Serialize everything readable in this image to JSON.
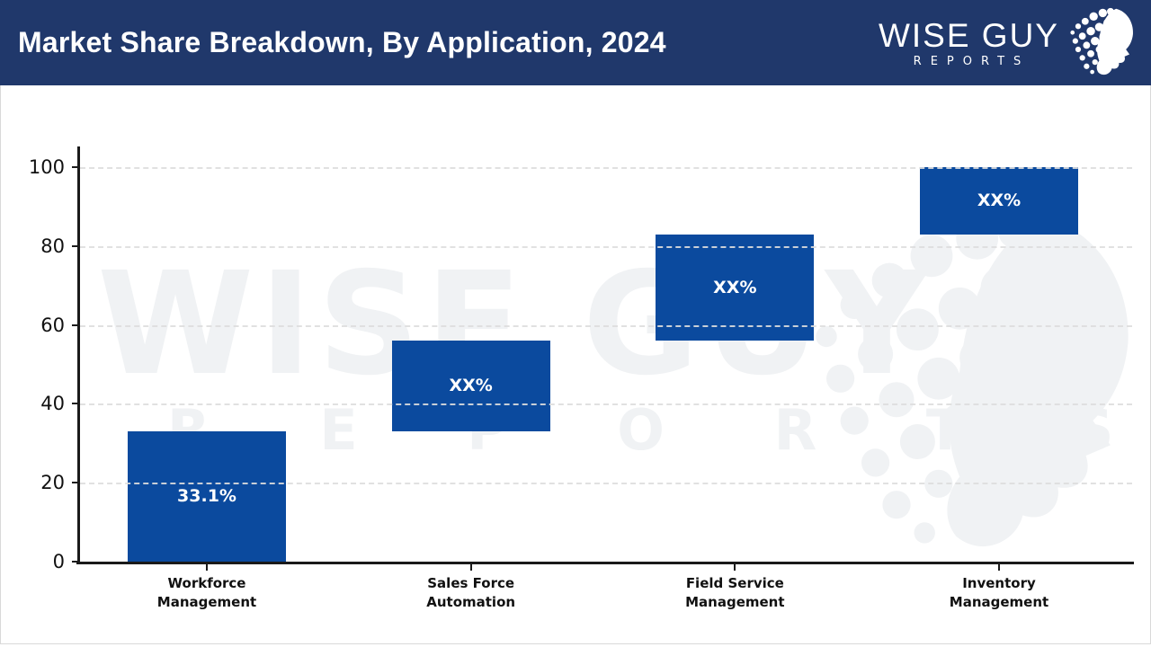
{
  "header": {
    "title": "Market Share Breakdown, By Application, 2024",
    "logo_line1": "WISE GUY",
    "logo_line2": "REPORTS"
  },
  "watermark": {
    "line1": "WISE GUY",
    "line2": "R E P O R T S"
  },
  "colors": {
    "header_bg": "#20386B",
    "bar": "#0B4A9E",
    "axis": "#1A1A1A",
    "grid": "#DEDEDE",
    "tick_text": "#111111",
    "category_text": "#111111",
    "bar_label": "#FFFFFF",
    "watermark": "#F0F2F4",
    "border": "#D9D9D9"
  },
  "chart_data": {
    "type": "bar",
    "subtype": "waterfall",
    "title": "Market Share Breakdown, By Application, 2024",
    "categories": [
      "Workforce Management",
      "Sales Force Automation",
      "Field Service Management",
      "Inventory Management"
    ],
    "category_lines": [
      [
        "Workforce",
        "Management"
      ],
      [
        "Sales Force",
        "Automation"
      ],
      [
        "Field Service",
        "Management"
      ],
      [
        "Inventory",
        "Management"
      ]
    ],
    "segments": [
      {
        "start": 0,
        "end": 33.1,
        "label": "33.1%"
      },
      {
        "start": 33.1,
        "end": 56,
        "label": "XX%"
      },
      {
        "start": 56,
        "end": 83,
        "label": "XX%"
      },
      {
        "start": 83,
        "end": 100,
        "label": "XX%"
      }
    ],
    "yticks": [
      0,
      20,
      40,
      60,
      80,
      100
    ],
    "ylim": [
      0,
      105
    ],
    "xlabel": "",
    "ylabel": "",
    "grid": "dashed-horizontal",
    "legend": "none"
  }
}
